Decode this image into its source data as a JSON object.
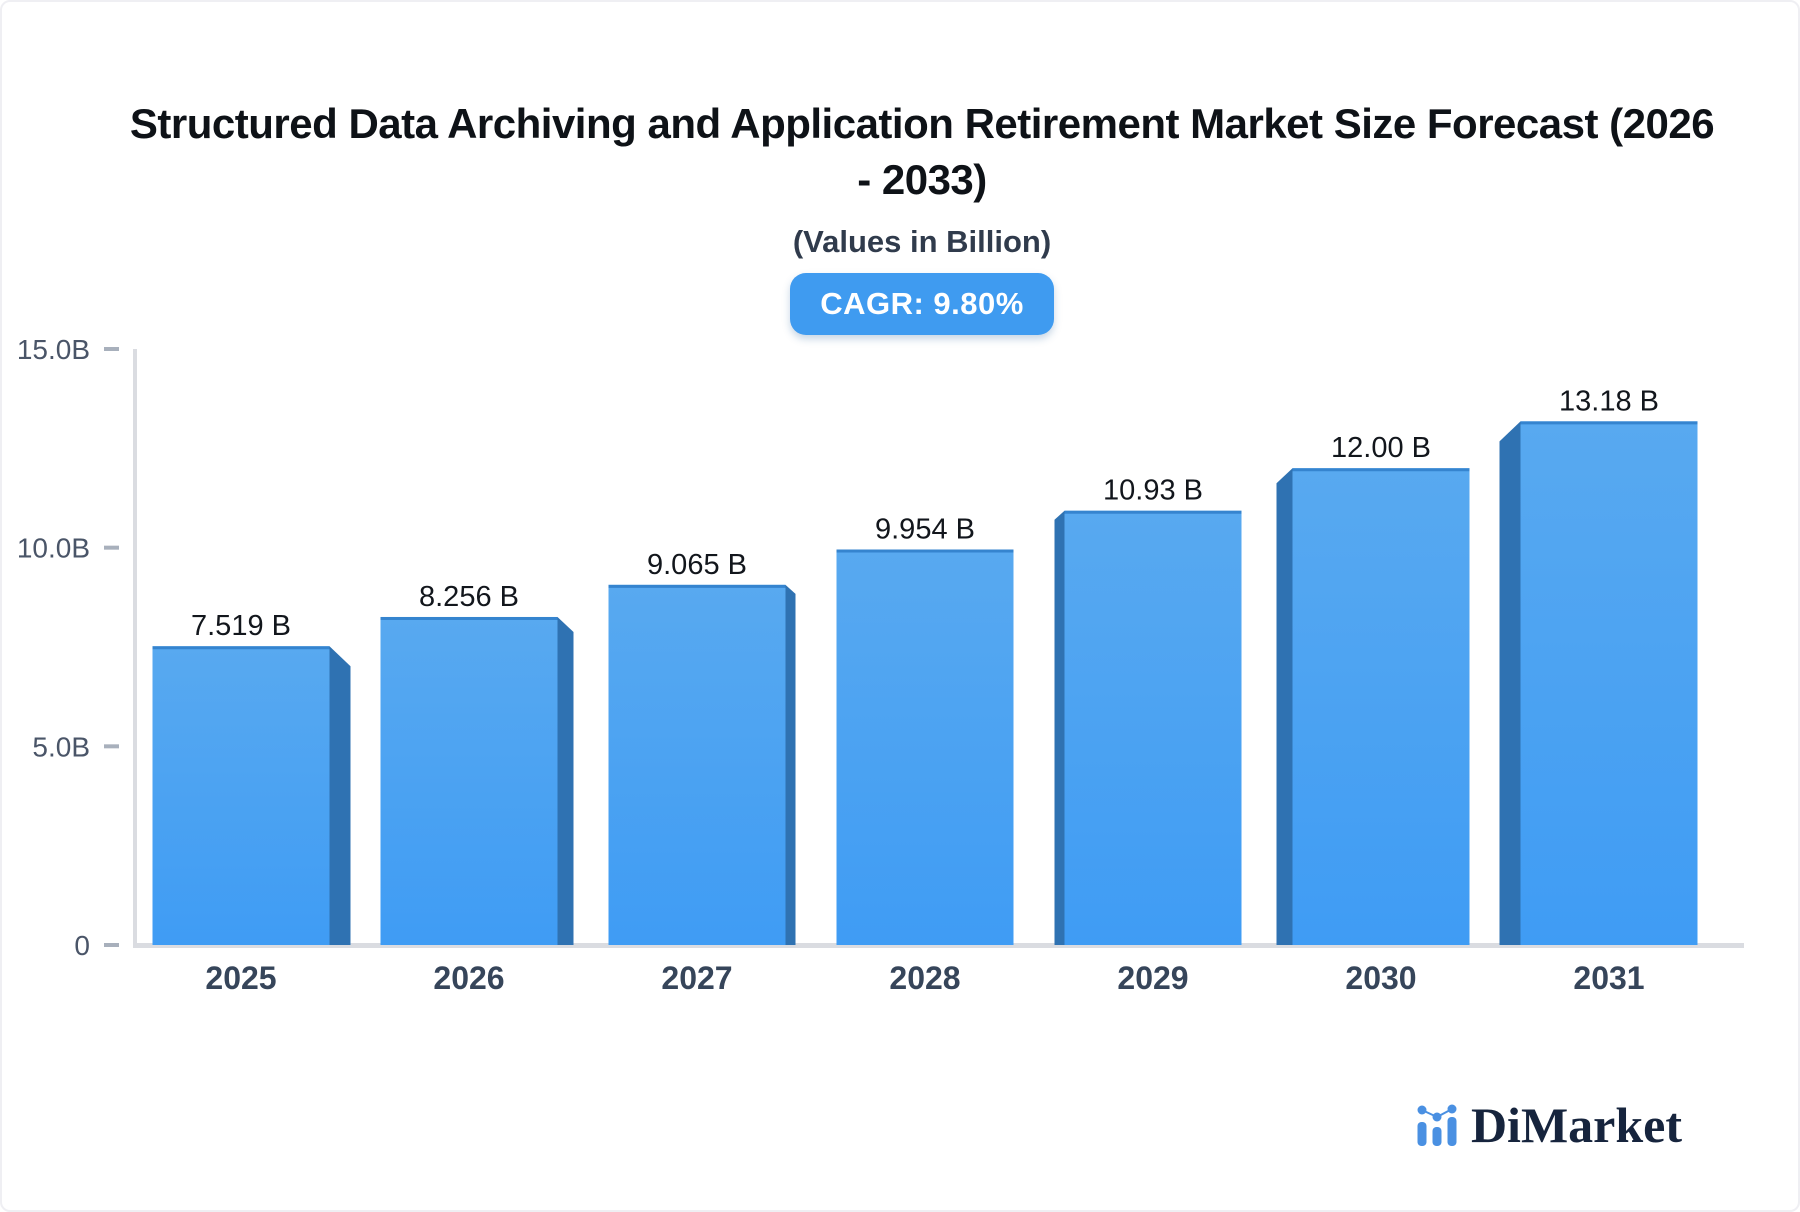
{
  "header": {
    "title_line1": "Structured Data Archiving and Application Retirement Market Size Forecast (2026",
    "title_line2": "- 2033)",
    "subtitle": "(Values in Billion)",
    "cagr_badge": "CAGR: 9.80%"
  },
  "chart_data": {
    "type": "bar",
    "title": "Structured Data Archiving and Application Retirement Market Size Forecast (2026 - 2033)",
    "subtitle": "(Values in Billion)",
    "cagr_percent": "9.80%",
    "categories": [
      "2025",
      "2026",
      "2027",
      "2028",
      "2029",
      "2030",
      "2031"
    ],
    "values": [
      7.519,
      8.256,
      9.065,
      9.954,
      10.93,
      12.0,
      13.18
    ],
    "bar_labels": [
      "7.519 B",
      "8.256 B",
      "9.065 B",
      "9.954 B",
      "10.93 B",
      "12.00 B",
      "13.18 B"
    ],
    "xlabel": "",
    "ylabel": "",
    "ylim": [
      0,
      15
    ],
    "y_ticks": [
      {
        "value": 15,
        "label": "15.0B"
      },
      {
        "value": 10,
        "label": "10.0B"
      },
      {
        "value": 5,
        "label": "5.0B"
      },
      {
        "value": 0,
        "label": "0"
      }
    ],
    "grid": false,
    "legend": false,
    "style_3d": true
  },
  "branding": {
    "logo_text": "DiMarket",
    "logo_icon": "bar-chart-logo-icon"
  },
  "colors": {
    "accent": "#3f9bf0",
    "bar_face_top": "#58a9f0",
    "bar_face_bottom": "#3f9cf4",
    "bar_side": "#2f72b2",
    "bar_top_edge": "#3584cf",
    "axis_line": "#dadce1",
    "tick_dash": "#a8b0bc",
    "tick_text": "#4a5568",
    "year_text": "#36455a",
    "value_text": "#12161c",
    "logo_navy": "#16243d",
    "logo_blue": "#4a90e2"
  }
}
